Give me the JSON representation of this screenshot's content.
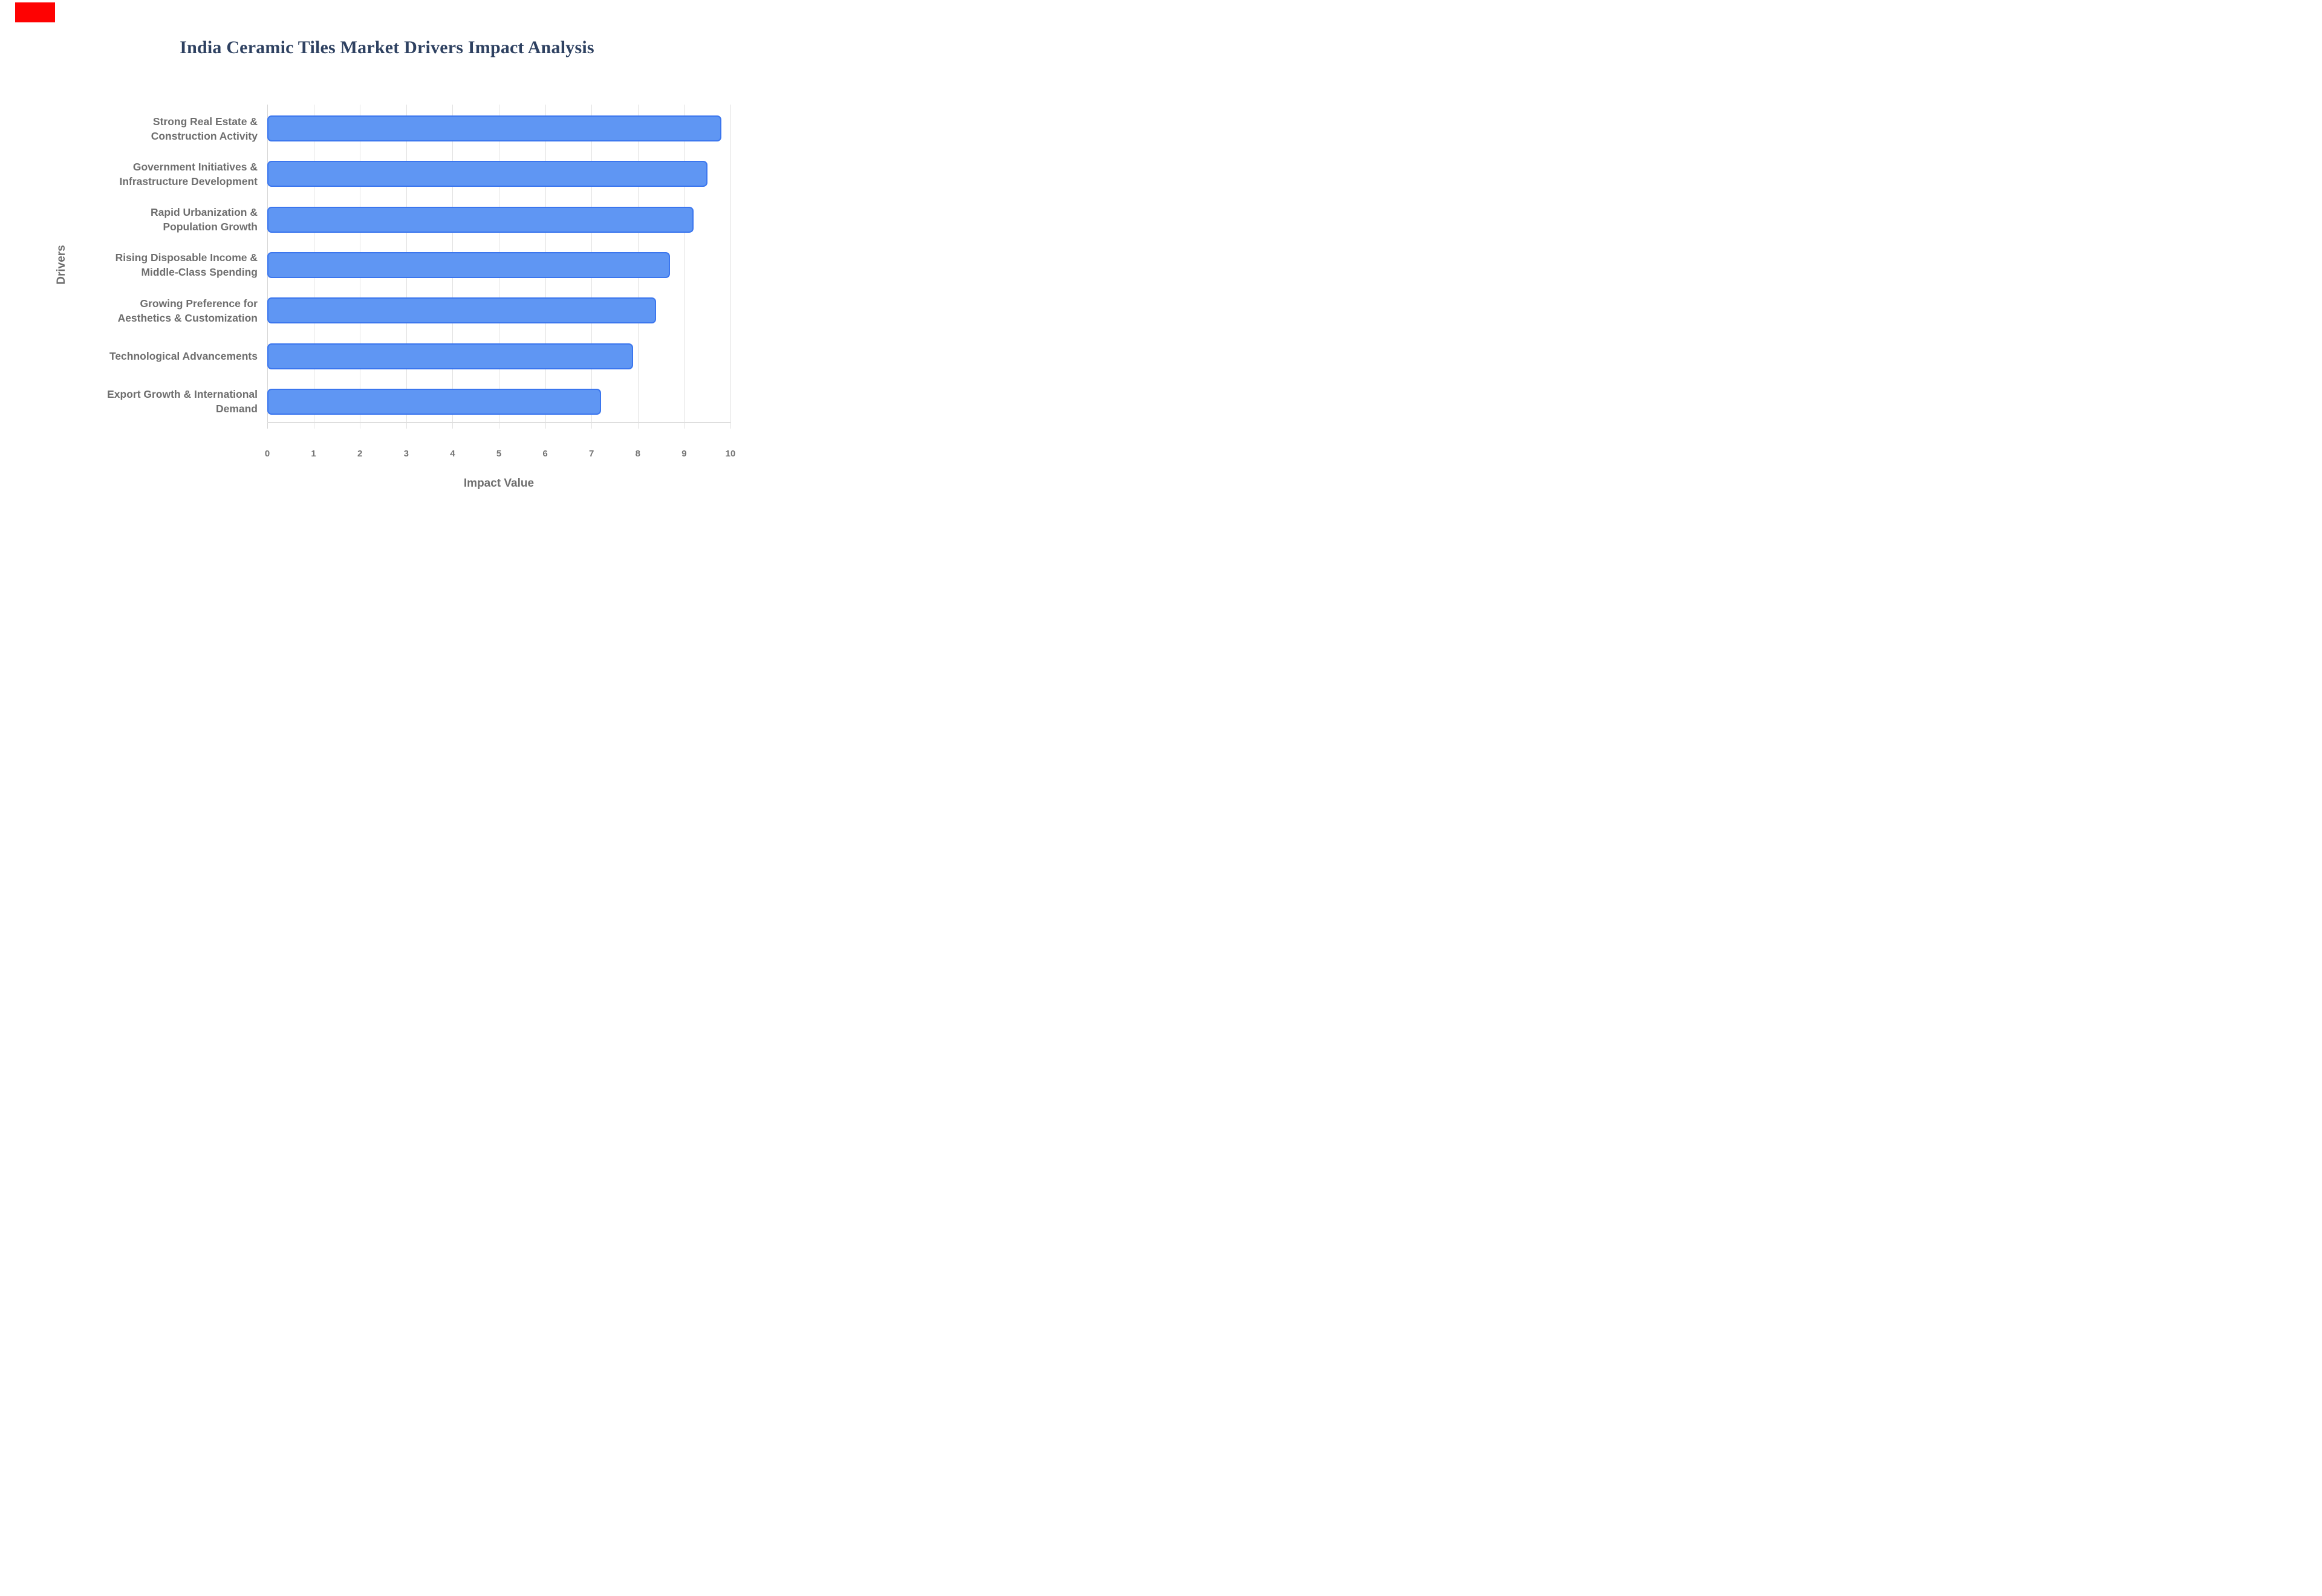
{
  "page": {
    "background": "#ffffff"
  },
  "decoration": {
    "red_marker_color": "#fe0202"
  },
  "title": {
    "text": "India Ceramic Tiles Market Drivers Impact Analysis",
    "color": "#2e4161"
  },
  "chart_data": {
    "type": "bar",
    "orientation": "horizontal",
    "title": "India Ceramic Tiles Market Drivers Impact Analysis",
    "xlabel": "Impact Value",
    "ylabel": "Drivers",
    "categories": [
      "Strong Real Estate & Construction Activity",
      "Government Initiatives & Infrastructure Development",
      "Rapid Urbanization & Population Growth",
      "Rising Disposable Income & Middle-Class Spending",
      "Growing Preference for Aesthetics & Customization",
      "Technological Advancements",
      "Export Growth & International Demand"
    ],
    "category_lines": [
      [
        "Strong Real Estate &",
        "Construction Activity"
      ],
      [
        "Government Initiatives &",
        "Infrastructure Development"
      ],
      [
        "Rapid Urbanization &",
        "Population Growth"
      ],
      [
        "Rising Disposable Income &",
        "Middle-Class Spending"
      ],
      [
        "Growing Preference for",
        "Aesthetics & Customization"
      ],
      [
        "Technological Advancements"
      ],
      [
        "Export Growth & International",
        "Demand"
      ]
    ],
    "values": [
      9.8,
      9.5,
      9.2,
      8.7,
      8.4,
      7.9,
      7.2
    ],
    "xlim": [
      0,
      10
    ],
    "xticks": [
      0,
      1,
      2,
      3,
      4,
      5,
      6,
      7,
      8,
      9,
      10
    ],
    "grid": true,
    "legend": false,
    "bar_fill": "#5f96f3",
    "bar_border": "#3b76ee",
    "gridline_color": "#e2e2e2",
    "label_color": "#6e6e6e",
    "tick_color": "#737373",
    "title_color": "#2e4161"
  }
}
